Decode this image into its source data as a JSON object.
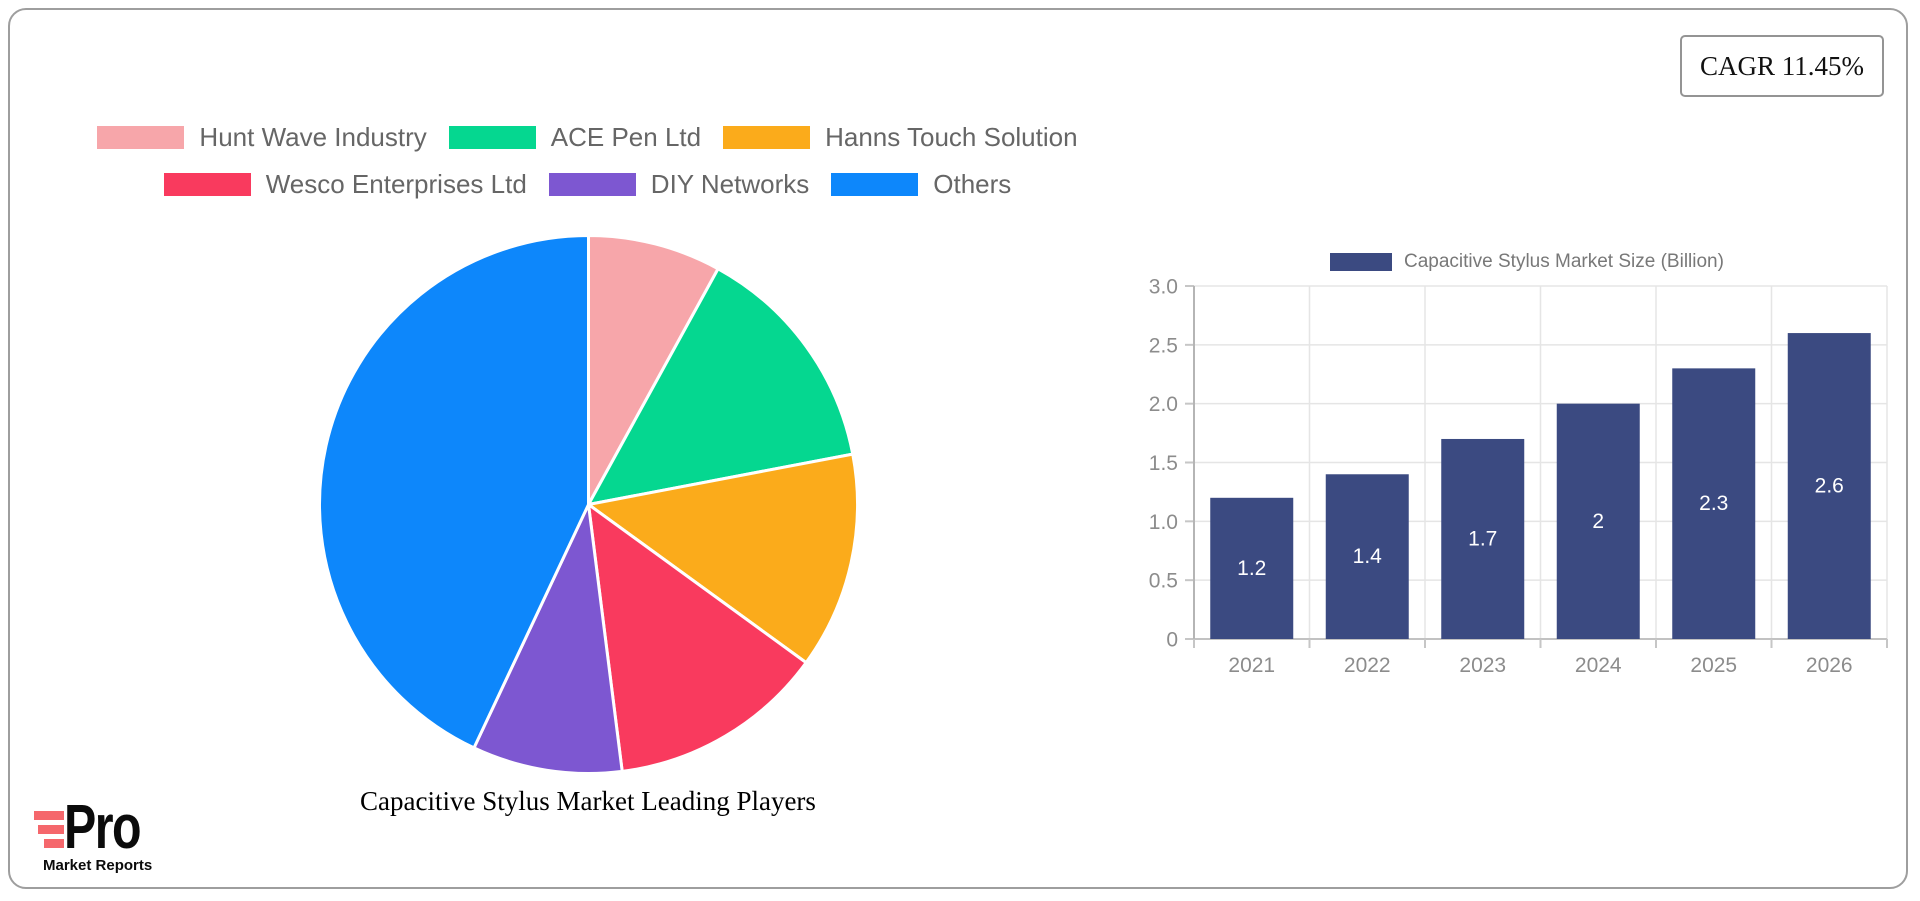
{
  "badge": {
    "label": "CAGR 11.45%"
  },
  "chart_data": [
    {
      "type": "pie",
      "title": "Capacitive Stylus Market Leading Players",
      "labels": [
        "Hunt Wave Industry",
        "ACE Pen Ltd",
        "Hanns Touch Solution",
        "Wesco Enterprises Ltd",
        "DIY Networks",
        "Others"
      ],
      "values": [
        8,
        14,
        13,
        13,
        9,
        43
      ],
      "unit": "percent",
      "colors": [
        "#f7a6aa",
        "#05d790",
        "#fbab1b",
        "#f93a5e",
        "#7d57d1",
        "#0d87fb"
      ],
      "start_angle_deg": -90,
      "direction": "clockwise",
      "slice_border_color": "#ffffff",
      "legend_position": "top"
    },
    {
      "type": "bar",
      "legend_label": "Capacitive Stylus Market Size (Billion)",
      "categories": [
        "2021",
        "2022",
        "2023",
        "2024",
        "2025",
        "2026"
      ],
      "values": [
        1.2,
        1.4,
        1.7,
        2,
        2.3,
        2.6
      ],
      "value_labels": [
        "1.2",
        "1.4",
        "1.7",
        "2",
        "2.3",
        "2.6"
      ],
      "bar_color": "#3b4a81",
      "value_label_color": "#ffffff",
      "ylim": [
        0,
        3
      ],
      "yticks": [
        "0",
        "0.5",
        "1.0",
        "1.5",
        "2.0",
        "2.5",
        "3.0"
      ],
      "grid": true,
      "legend_position": "top",
      "axis_label_color": "#8c8c8c",
      "grid_color": "#e5e5e5"
    }
  ],
  "logo": {
    "text": "Pro",
    "subtext": "Market Reports",
    "bar_color": "#f5676c"
  }
}
